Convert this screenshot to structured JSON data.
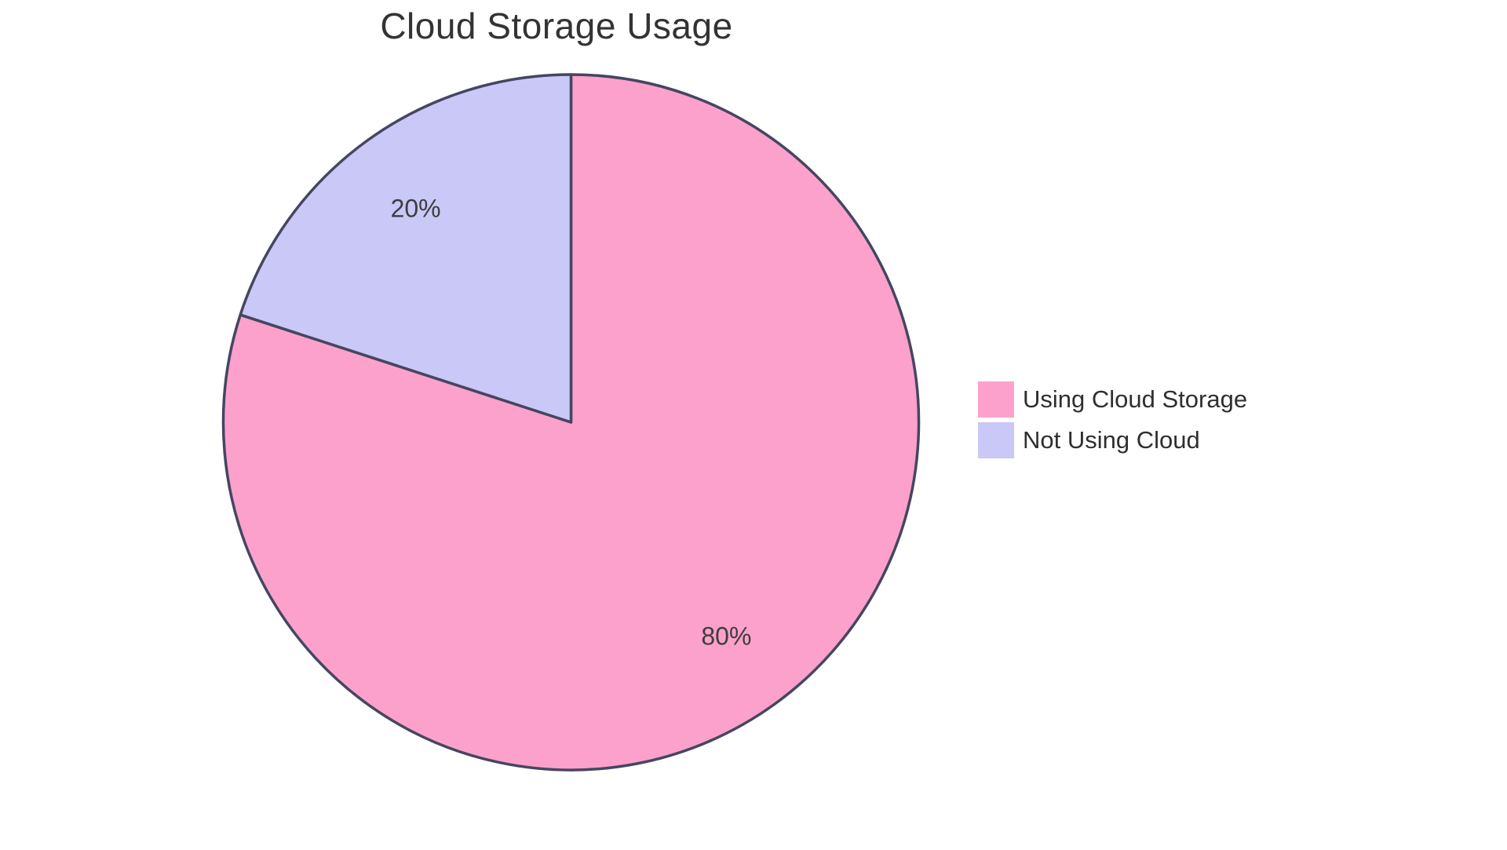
{
  "page": {
    "background_color": "#ffffff"
  },
  "chart_data": {
    "type": "pie",
    "title": "Cloud Storage Usage",
    "title_color": "#333333",
    "slices": [
      {
        "label": "Using Cloud Storage",
        "value": 80,
        "pct_label": "80%",
        "color": "#FCA1CC"
      },
      {
        "label": "Not Using Cloud",
        "value": 20,
        "pct_label": "20%",
        "color": "#CAC8F7"
      }
    ],
    "start_angle_deg": 0,
    "direction": "clockwise",
    "stroke_color": "#454660",
    "stroke_width": 3.5,
    "slice_label_color": "#3d3d3d",
    "legend": {
      "position": "right",
      "entries": [
        "Using Cloud Storage",
        "Not Using Cloud"
      ]
    }
  }
}
